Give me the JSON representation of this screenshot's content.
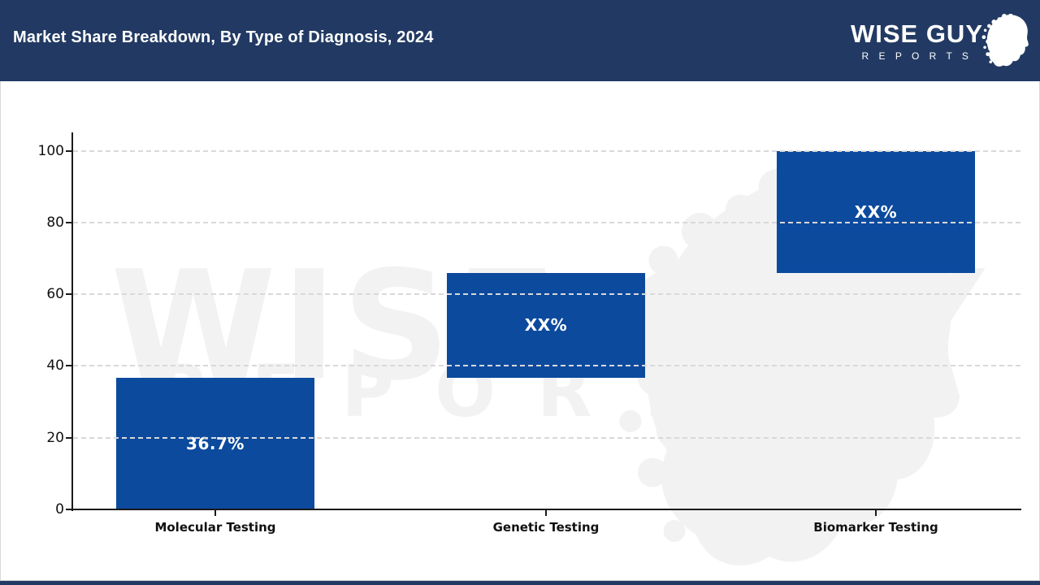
{
  "header": {
    "title": "Market Share Breakdown, By Type of Diagnosis, 2024",
    "logo": {
      "name": "Wise Guy Reports",
      "line1": "WISE GUY",
      "line2": "R E P O R T S"
    }
  },
  "watermark": {
    "line1": "WISE GUY",
    "line2": "R E P O R T S"
  },
  "chart_data": {
    "type": "bar",
    "subtype": "waterfall",
    "title": "Market Share Breakdown, By Type of Diagnosis, 2024",
    "categories": [
      "Molecular Testing",
      "Genetic Testing",
      "Biomarker Testing"
    ],
    "bars": [
      {
        "category": "Molecular Testing",
        "start": 0,
        "end": 36.7,
        "label": "36.7%"
      },
      {
        "category": "Genetic Testing",
        "start": 36.7,
        "end": 66,
        "label": "XX%"
      },
      {
        "category": "Biomarker Testing",
        "start": 66,
        "end": 100,
        "label": "XX%"
      }
    ],
    "yticks": [
      0,
      20,
      40,
      60,
      80,
      100
    ],
    "ylim": [
      0,
      105
    ],
    "xlabel": "",
    "ylabel": "",
    "grid": "horizontal-dashed",
    "legend": "none",
    "bar_color": "#0c4a9e",
    "label_color": "#ffffff"
  },
  "icons": {
    "logo_face": "face-profile-of-dots",
    "watermark_face": "face-profile-of-dots"
  },
  "colors": {
    "header_bg": "#223a63",
    "footer_bg": "#223a63",
    "bar_blue": "#0c4a9e",
    "axis": "#1a1a1a",
    "grid": "#d9d9d9",
    "tick_text": "#111111",
    "watermark": "#f2f2f3",
    "page_bg": "#ffffff"
  }
}
